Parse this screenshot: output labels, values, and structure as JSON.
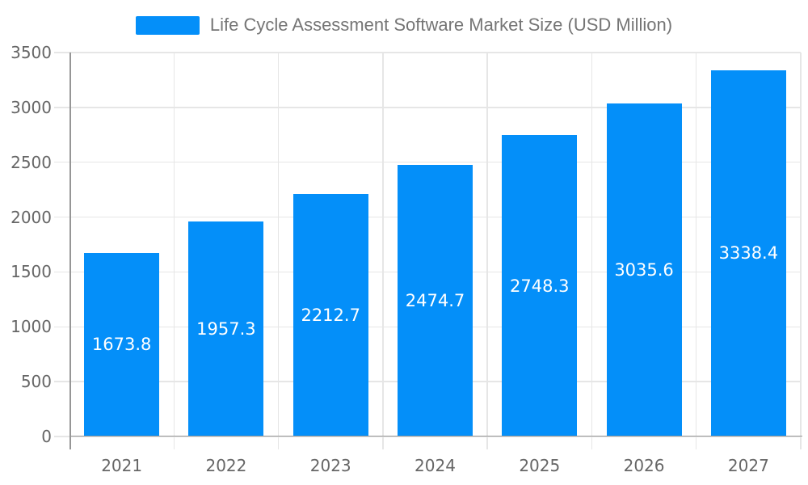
{
  "legend": {
    "label": "Life Cycle Assessment Software Market Size (USD Million)"
  },
  "colors": {
    "bar": "#048FF9",
    "grid": "#e6e6e6",
    "axis": "#969696",
    "tick_label": "#666666",
    "legend_text": "#757575",
    "value_label": "#ffffff",
    "background": "#ffffff"
  },
  "chart_data": {
    "type": "bar",
    "title": "Life Cycle Assessment Software Market Size (USD Million)",
    "series_name": "Life Cycle Assessment Software Market Size (USD Million)",
    "categories": [
      "2021",
      "2022",
      "2023",
      "2024",
      "2025",
      "2026",
      "2027"
    ],
    "values": [
      1673.8,
      1957.3,
      2212.7,
      2474.7,
      2748.3,
      3035.6,
      3338.4
    ],
    "value_labels": [
      "1673.8",
      "1957.3",
      "2212.7",
      "2474.7",
      "2748.3",
      "3035.6",
      "3338.4"
    ],
    "xlabel": "",
    "ylabel": "",
    "ylim": [
      0,
      3500
    ],
    "ytick_step": 500,
    "yticks": [
      0,
      500,
      1000,
      1500,
      2000,
      2500,
      3000,
      3500
    ],
    "grid": true,
    "legend_position": "top",
    "bar_width_fraction": 0.72,
    "value_label_position": "center-of-bar"
  }
}
